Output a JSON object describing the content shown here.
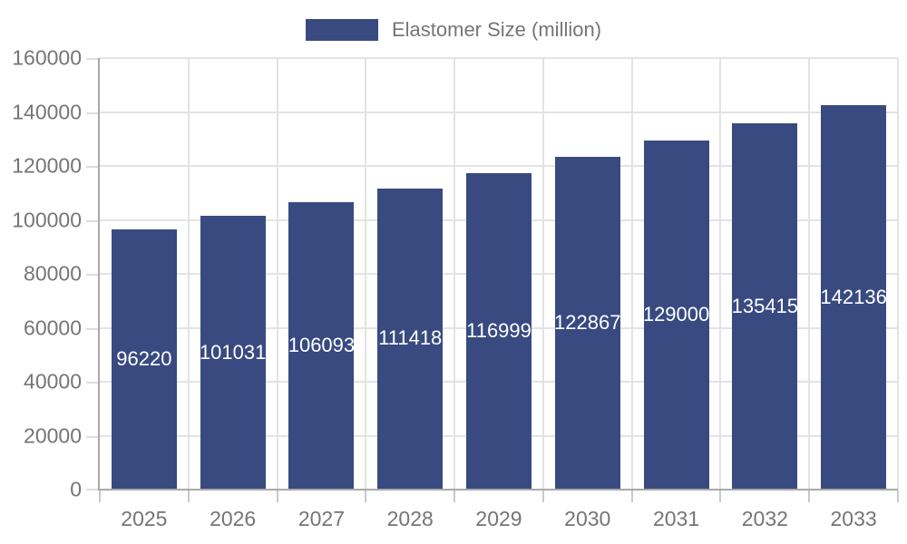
{
  "legend": {
    "label": "Elastomer Size (million)"
  },
  "chart_data": {
    "type": "bar",
    "title": "",
    "categories": [
      "2025",
      "2026",
      "2027",
      "2028",
      "2029",
      "2030",
      "2031",
      "2032",
      "2033"
    ],
    "series": [
      {
        "name": "Elastomer Size (million)",
        "values": [
          96220,
          101031,
          106093,
          111418,
          116999,
          122867,
          129000,
          135415,
          142136
        ]
      }
    ],
    "value_labels": [
      "96220",
      "101031",
      "106093",
      "111418",
      "116999",
      "122867",
      "129000",
      "135415",
      "142136"
    ],
    "xlabel": "",
    "ylabel": "",
    "ylim": [
      0,
      160000
    ],
    "ytick_step": 20000,
    "yticks": [
      "0",
      "20000",
      "40000",
      "60000",
      "80000",
      "100000",
      "120000",
      "140000",
      "160000"
    ],
    "grid": true,
    "legend_position": "top",
    "colors": {
      "bar": "#384A80",
      "value_label": "#ffffff",
      "grid": "#e3e3e3",
      "axis": "#a9a9a9",
      "tick_text": "#757575"
    }
  }
}
